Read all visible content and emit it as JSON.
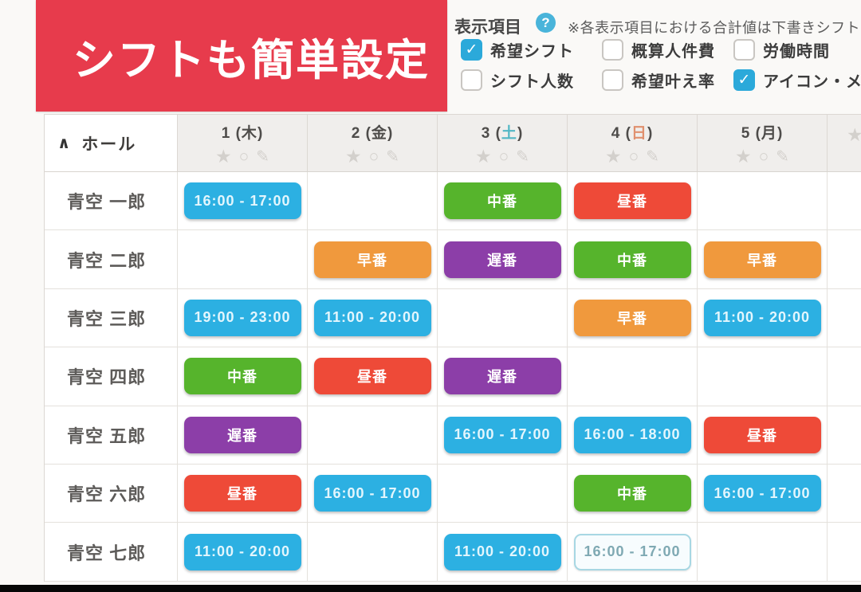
{
  "banner": {
    "text": "シフトも簡単設定",
    "bg": "#e73b4c"
  },
  "controls": {
    "title": "表示項目",
    "help_icon": "?",
    "note": "※各表示項目における合計値は下書きシフト",
    "checkboxes": [
      {
        "label": "希望シフト",
        "checked": true
      },
      {
        "label": "概算人件費",
        "checked": false
      },
      {
        "label": "労働時間",
        "checked": false
      },
      {
        "label": "シフト人数",
        "checked": false
      },
      {
        "label": "希望叶え率",
        "checked": false
      },
      {
        "label": "アイコン・メモ",
        "checked": true
      }
    ]
  },
  "icons": {
    "check": "✓",
    "chevron_up": "∧",
    "star": "★",
    "circle": "○",
    "pencil": "✎"
  },
  "colors": {
    "banner_red": "#e73b4c",
    "checkbox_blue": "#2ba9da",
    "header_bg": "#f0eeec",
    "saturday": "#53b7c5",
    "sunday": "#e0906e"
  },
  "badge_colors": {
    "blue": "#2cb0e2",
    "green": "#56b42c",
    "red": "#ee4a38",
    "orange": "#f0993d",
    "purple": "#8c3ea8",
    "outline_bg": "#f7fcfe",
    "outline_border": "#a7d7e3",
    "outline_text": "#7fa9b3"
  },
  "table": {
    "group": {
      "label": "ホール"
    },
    "days": [
      {
        "num": "1",
        "dow": "木"
      },
      {
        "num": "2",
        "dow": "金"
      },
      {
        "num": "3",
        "dow": "土",
        "dow_color": "#53b7c5"
      },
      {
        "num": "4",
        "dow": "日",
        "dow_color": "#e0906e"
      },
      {
        "num": "5",
        "dow": "月"
      }
    ],
    "rows": [
      {
        "name": "青空 一郎",
        "cells": [
          {
            "kind": "blue",
            "label": "16:00 - 17:00"
          },
          null,
          {
            "kind": "green",
            "label": "中番"
          },
          {
            "kind": "red",
            "label": "昼番"
          },
          null
        ]
      },
      {
        "name": "青空 二郎",
        "cells": [
          null,
          {
            "kind": "orange",
            "label": "早番"
          },
          {
            "kind": "purple",
            "label": "遅番"
          },
          {
            "kind": "green",
            "label": "中番"
          },
          {
            "kind": "orange",
            "label": "早番"
          }
        ]
      },
      {
        "name": "青空 三郎",
        "cells": [
          {
            "kind": "blue",
            "label": "19:00 - 23:00"
          },
          {
            "kind": "blue",
            "label": "11:00 - 20:00"
          },
          null,
          {
            "kind": "orange",
            "label": "早番"
          },
          {
            "kind": "blue",
            "label": "11:00 - 20:00"
          }
        ]
      },
      {
        "name": "青空 四郎",
        "cells": [
          {
            "kind": "green",
            "label": "中番"
          },
          {
            "kind": "red",
            "label": "昼番"
          },
          {
            "kind": "purple",
            "label": "遅番"
          },
          null,
          null
        ]
      },
      {
        "name": "青空 五郎",
        "cells": [
          {
            "kind": "purple",
            "label": "遅番"
          },
          null,
          {
            "kind": "blue",
            "label": "16:00 - 17:00"
          },
          {
            "kind": "blue",
            "label": "16:00 - 18:00"
          },
          {
            "kind": "red",
            "label": "昼番"
          }
        ]
      },
      {
        "name": "青空 六郎",
        "cells": [
          {
            "kind": "red",
            "label": "昼番"
          },
          {
            "kind": "blue",
            "label": "16:00 - 17:00"
          },
          null,
          {
            "kind": "green",
            "label": "中番"
          },
          {
            "kind": "blue",
            "label": "16:00 - 17:00"
          }
        ]
      },
      {
        "name": "青空 七郎",
        "cells": [
          {
            "kind": "blue",
            "label": "11:00 - 20:00"
          },
          null,
          {
            "kind": "blue",
            "label": "11:00 - 20:00"
          },
          {
            "kind": "outline",
            "label": "16:00 - 17:00"
          },
          null
        ]
      }
    ]
  }
}
